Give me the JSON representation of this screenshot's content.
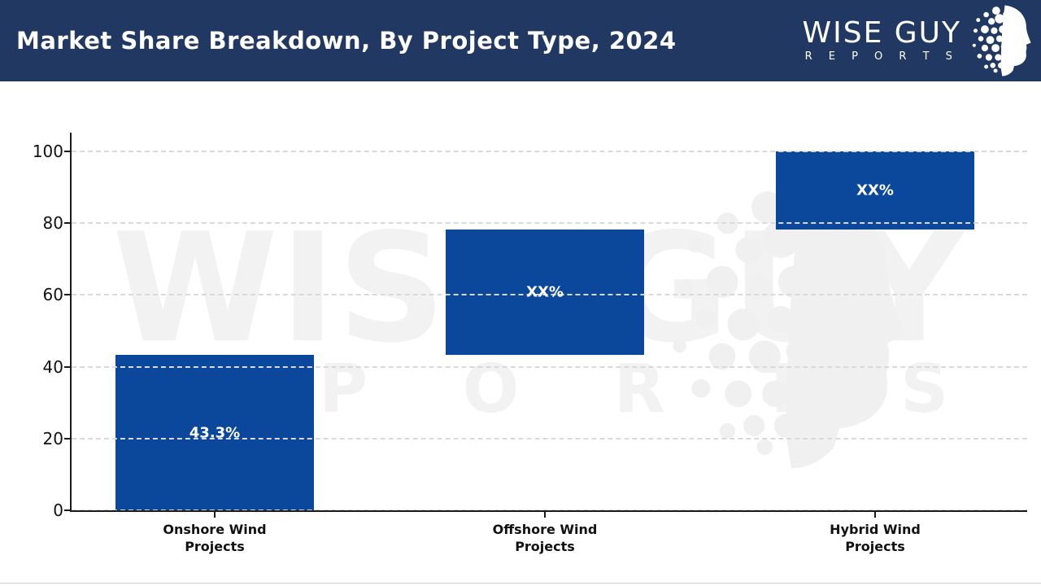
{
  "header": {
    "title": "Market Share Breakdown, By Project Type, 2024",
    "logo": {
      "name_line": "WISE GUY",
      "sub_line": "R E P O R T S"
    }
  },
  "watermark": {
    "line1": "WISE GUY",
    "line2": "P O R T S"
  },
  "chart_data": {
    "type": "bar",
    "subtype": "stacked-waterfall",
    "title": "Market Share Breakdown, By Project Type, 2024",
    "categories": [
      "Onshore Wind\nProjects",
      "Offshore Wind\nProjects",
      "Hybrid Wind\nProjects"
    ],
    "series": [
      {
        "name": "Onshore Wind Projects",
        "start": 0,
        "end": 43.3,
        "label": "43.3%"
      },
      {
        "name": "Offshore Wind Projects",
        "start": 43.3,
        "end": 78.3,
        "label": "XX%"
      },
      {
        "name": "Hybrid Wind Projects",
        "start": 78.3,
        "end": 99.9,
        "label": "XX%"
      }
    ],
    "xlabel": "",
    "ylabel": "",
    "ylim": [
      0,
      105
    ],
    "yticks": [
      0,
      20,
      40,
      60,
      80,
      100
    ],
    "grid": "horizontal-dashed",
    "legend": "none",
    "bar_color": "#0b479b",
    "bar_label_color": "#ffffff",
    "axis_color": "#1a1a1a",
    "gridline_color": "#d9d9d9"
  }
}
